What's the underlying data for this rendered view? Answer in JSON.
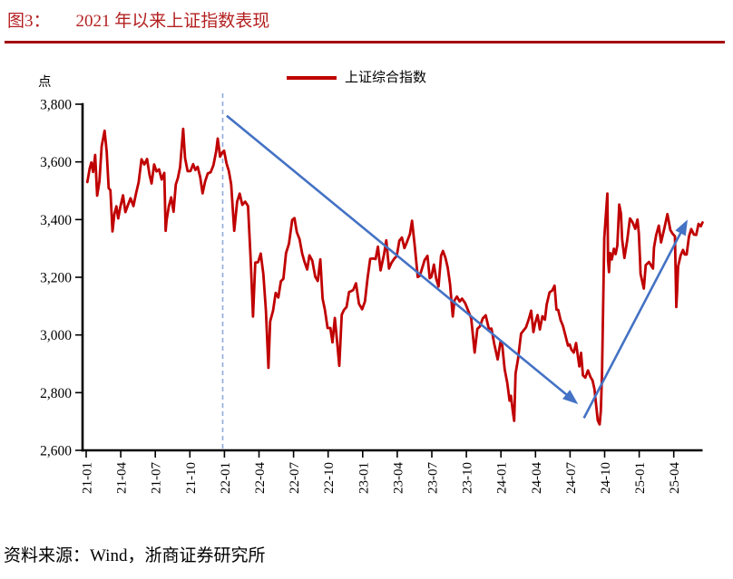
{
  "header": {
    "figure_label": "图3：",
    "title": "2021 年以来上证指数表现"
  },
  "footer": {
    "source": "资料来源：Wind，浙商证券研究所"
  },
  "colors": {
    "title_red": "#B42020",
    "rule_red": "#A40D10",
    "series_red": "#C00000",
    "arrow_blue": "#4472C4",
    "dashed_blue": "#8FAADC",
    "axis_black": "#000000"
  },
  "chart_data": {
    "type": "line",
    "title": "2021 年以来上证指数表现",
    "xlabel": "",
    "ylabel": "点",
    "legend_label": "上证综合指数",
    "legend_position": "top-center",
    "grid": false,
    "ylim": [
      2600,
      3800
    ],
    "yticks": [
      [
        2600,
        "2,600"
      ],
      [
        2800,
        "2,800"
      ],
      [
        3000,
        "3,000"
      ],
      [
        3200,
        "3,200"
      ],
      [
        3400,
        "3,400"
      ],
      [
        3600,
        "3,600"
      ],
      [
        3800,
        "3,800"
      ]
    ],
    "x_unit": "months_since_2021_01",
    "xtick_interval_months": 3,
    "x_range": [
      0,
      53.5
    ],
    "xticks": [
      "21-01",
      "21-04",
      "21-07",
      "21-10",
      "22-01",
      "22-04",
      "22-07",
      "22-10",
      "23-01",
      "23-04",
      "23-07",
      "23-10",
      "24-01",
      "24-04",
      "24-07",
      "24-10",
      "25-01",
      "25-04"
    ],
    "series": [
      {
        "name": "上证综合指数",
        "color": "#C00000",
        "points": [
          [
            0.1,
            3530
          ],
          [
            0.3,
            3576
          ],
          [
            0.45,
            3598
          ],
          [
            0.6,
            3565
          ],
          [
            0.78,
            3624
          ],
          [
            0.95,
            3483
          ],
          [
            1.15,
            3533
          ],
          [
            1.35,
            3655
          ],
          [
            1.6,
            3708
          ],
          [
            1.78,
            3636
          ],
          [
            1.95,
            3509
          ],
          [
            2.1,
            3502
          ],
          [
            2.28,
            3359
          ],
          [
            2.45,
            3419
          ],
          [
            2.62,
            3446
          ],
          [
            2.78,
            3404
          ],
          [
            2.95,
            3442
          ],
          [
            3.2,
            3484
          ],
          [
            3.4,
            3426
          ],
          [
            3.62,
            3450
          ],
          [
            3.85,
            3474
          ],
          [
            4.1,
            3447
          ],
          [
            4.32,
            3490
          ],
          [
            4.55,
            3529
          ],
          [
            4.8,
            3609
          ],
          [
            5.05,
            3591
          ],
          [
            5.28,
            3610
          ],
          [
            5.5,
            3556
          ],
          [
            5.68,
            3525
          ],
          [
            5.9,
            3591
          ],
          [
            6.1,
            3567
          ],
          [
            6.32,
            3574
          ],
          [
            6.55,
            3539
          ],
          [
            6.78,
            3562
          ],
          [
            6.9,
            3361
          ],
          [
            6.98,
            3397
          ],
          [
            7.18,
            3447
          ],
          [
            7.38,
            3477
          ],
          [
            7.58,
            3427
          ],
          [
            7.78,
            3522
          ],
          [
            7.95,
            3543
          ],
          [
            8.15,
            3581
          ],
          [
            8.42,
            3715
          ],
          [
            8.58,
            3613
          ],
          [
            8.8,
            3568
          ],
          [
            9.05,
            3568
          ],
          [
            9.28,
            3592
          ],
          [
            9.48,
            3572
          ],
          [
            9.68,
            3583
          ],
          [
            9.9,
            3547
          ],
          [
            10.1,
            3491
          ],
          [
            10.32,
            3532
          ],
          [
            10.55,
            3560
          ],
          [
            10.8,
            3564
          ],
          [
            11.05,
            3589
          ],
          [
            11.28,
            3637
          ],
          [
            11.42,
            3681
          ],
          [
            11.62,
            3618
          ],
          [
            11.8,
            3632
          ],
          [
            11.97,
            3639
          ],
          [
            12.18,
            3595
          ],
          [
            12.38,
            3569
          ],
          [
            12.58,
            3523
          ],
          [
            12.85,
            3361
          ],
          [
            13.1,
            3462
          ],
          [
            13.32,
            3490
          ],
          [
            13.55,
            3451
          ],
          [
            13.8,
            3462
          ],
          [
            14.05,
            3447
          ],
          [
            14.28,
            3256
          ],
          [
            14.48,
            3064
          ],
          [
            14.68,
            3251
          ],
          [
            14.92,
            3252
          ],
          [
            15.15,
            3282
          ],
          [
            15.38,
            3211
          ],
          [
            15.6,
            3086
          ],
          [
            15.82,
            2886
          ],
          [
            15.97,
            3047
          ],
          [
            16.22,
            3084
          ],
          [
            16.45,
            3146
          ],
          [
            16.68,
            3130
          ],
          [
            16.9,
            3186
          ],
          [
            17.12,
            3195
          ],
          [
            17.35,
            3284
          ],
          [
            17.6,
            3316
          ],
          [
            17.88,
            3399
          ],
          [
            18.08,
            3405
          ],
          [
            18.28,
            3356
          ],
          [
            18.52,
            3332
          ],
          [
            18.75,
            3282
          ],
          [
            18.95,
            3253
          ],
          [
            19.18,
            3227
          ],
          [
            19.38,
            3276
          ],
          [
            19.62,
            3258
          ],
          [
            19.88,
            3202
          ],
          [
            20.1,
            3187
          ],
          [
            20.32,
            3262
          ],
          [
            20.52,
            3126
          ],
          [
            20.72,
            3088
          ],
          [
            20.95,
            3024
          ],
          [
            21.2,
            3024
          ],
          [
            21.38,
            2974
          ],
          [
            21.58,
            3059
          ],
          [
            21.78,
            2977
          ],
          [
            21.97,
            2893
          ],
          [
            22.18,
            3070
          ],
          [
            22.38,
            3087
          ],
          [
            22.6,
            3097
          ],
          [
            22.82,
            3149
          ],
          [
            22.97,
            3151
          ],
          [
            23.18,
            3156
          ],
          [
            23.42,
            3179
          ],
          [
            23.68,
            3108
          ],
          [
            23.95,
            3089
          ],
          [
            24.2,
            3116
          ],
          [
            24.42,
            3195
          ],
          [
            24.65,
            3264
          ],
          [
            24.9,
            3265
          ],
          [
            25.12,
            3263
          ],
          [
            25.32,
            3306
          ],
          [
            25.55,
            3224
          ],
          [
            25.85,
            3279
          ],
          [
            26.05,
            3328
          ],
          [
            26.28,
            3230
          ],
          [
            26.5,
            3250
          ],
          [
            26.75,
            3265
          ],
          [
            26.95,
            3273
          ],
          [
            27.18,
            3327
          ],
          [
            27.4,
            3338
          ],
          [
            27.62,
            3301
          ],
          [
            27.85,
            3323
          ],
          [
            28.1,
            3350
          ],
          [
            28.28,
            3396
          ],
          [
            28.52,
            3308
          ],
          [
            28.78,
            3201
          ],
          [
            28.95,
            3205
          ],
          [
            29.15,
            3230
          ],
          [
            29.38,
            3260
          ],
          [
            29.62,
            3274
          ],
          [
            29.82,
            3197
          ],
          [
            29.97,
            3202
          ],
          [
            30.18,
            3244
          ],
          [
            30.38,
            3196
          ],
          [
            30.58,
            3168
          ],
          [
            30.8,
            3275
          ],
          [
            30.97,
            3291
          ],
          [
            31.18,
            3268
          ],
          [
            31.38,
            3234
          ],
          [
            31.58,
            3176
          ],
          [
            31.82,
            3064
          ],
          [
            31.97,
            3120
          ],
          [
            32.18,
            3133
          ],
          [
            32.42,
            3116
          ],
          [
            32.62,
            3126
          ],
          [
            32.9,
            3110
          ],
          [
            33.15,
            3085
          ],
          [
            33.42,
            3058
          ],
          [
            33.72,
            2939
          ],
          [
            33.95,
            3021
          ],
          [
            34.18,
            3030
          ],
          [
            34.42,
            3057
          ],
          [
            34.68,
            3068
          ],
          [
            34.95,
            3021
          ],
          [
            35.18,
            3022
          ],
          [
            35.42,
            2969
          ],
          [
            35.72,
            2915
          ],
          [
            35.95,
            2975
          ],
          [
            36.12,
            2963
          ],
          [
            36.32,
            2881
          ],
          [
            36.55,
            2833
          ],
          [
            36.75,
            2772
          ],
          [
            36.87,
            2789
          ],
          [
            37.05,
            2730
          ],
          [
            37.15,
            2702
          ],
          [
            37.27,
            2866
          ],
          [
            37.48,
            2916
          ],
          [
            37.75,
            3005
          ],
          [
            37.95,
            3015
          ],
          [
            38.18,
            3027
          ],
          [
            38.42,
            3055
          ],
          [
            38.62,
            3084
          ],
          [
            38.82,
            3010
          ],
          [
            38.97,
            3041
          ],
          [
            39.18,
            3069
          ],
          [
            39.38,
            3019
          ],
          [
            39.6,
            3065
          ],
          [
            39.82,
            3053
          ],
          [
            39.97,
            3105
          ],
          [
            40.22,
            3148
          ],
          [
            40.45,
            3154
          ],
          [
            40.65,
            3171
          ],
          [
            40.82,
            3088
          ],
          [
            40.97,
            3087
          ],
          [
            41.18,
            3051
          ],
          [
            41.38,
            3032
          ],
          [
            41.6,
            2998
          ],
          [
            41.82,
            2963
          ],
          [
            41.97,
            2967
          ],
          [
            42.12,
            2949
          ],
          [
            42.32,
            2939
          ],
          [
            42.52,
            2972
          ],
          [
            42.8,
            2891
          ],
          [
            42.95,
            2938
          ],
          [
            43.12,
            2860
          ],
          [
            43.32,
            2852
          ],
          [
            43.55,
            2877
          ],
          [
            43.77,
            2854
          ],
          [
            43.95,
            2842
          ],
          [
            44.12,
            2812
          ],
          [
            44.4,
            2704
          ],
          [
            44.57,
            2690
          ],
          [
            44.67,
            2736
          ],
          [
            44.77,
            2863
          ],
          [
            44.87,
            3088
          ],
          [
            44.97,
            3336
          ],
          [
            45.24,
            3490
          ],
          [
            45.3,
            3258
          ],
          [
            45.38,
            3218
          ],
          [
            45.47,
            3284
          ],
          [
            45.62,
            3262
          ],
          [
            45.8,
            3299
          ],
          [
            45.95,
            3280
          ],
          [
            46.1,
            3310
          ],
          [
            46.27,
            3452
          ],
          [
            46.42,
            3421
          ],
          [
            46.52,
            3331
          ],
          [
            46.72,
            3267
          ],
          [
            46.95,
            3326
          ],
          [
            47.2,
            3404
          ],
          [
            47.42,
            3391
          ],
          [
            47.65,
            3368
          ],
          [
            47.85,
            3400
          ],
          [
            47.97,
            3352
          ],
          [
            48.07,
            3263
          ],
          [
            48.12,
            3212
          ],
          [
            48.4,
            3161
          ],
          [
            48.57,
            3242
          ],
          [
            48.85,
            3253
          ],
          [
            49.2,
            3230
          ],
          [
            49.28,
            3303
          ],
          [
            49.47,
            3346
          ],
          [
            49.7,
            3379
          ],
          [
            49.9,
            3321
          ],
          [
            50.2,
            3372
          ],
          [
            50.45,
            3419
          ],
          [
            50.7,
            3364
          ],
          [
            50.9,
            3351
          ],
          [
            51.1,
            3342
          ],
          [
            51.22,
            3097
          ],
          [
            51.28,
            3145
          ],
          [
            51.38,
            3238
          ],
          [
            51.6,
            3276
          ],
          [
            51.8,
            3295
          ],
          [
            51.95,
            3279
          ],
          [
            52.12,
            3279
          ],
          [
            52.32,
            3342
          ],
          [
            52.52,
            3367
          ],
          [
            52.75,
            3348
          ],
          [
            52.95,
            3347
          ],
          [
            53.15,
            3385
          ],
          [
            53.35,
            3377
          ],
          [
            53.5,
            3390
          ]
        ]
      }
    ],
    "annotations": {
      "dashed_vline": {
        "t": 11.85,
        "color": "#8FAADC",
        "style": "dashed"
      },
      "trend_arrows": [
        {
          "from_t": 12.2,
          "from_v": 3760,
          "to_t": 42.7,
          "to_v": 2760,
          "color": "#4472C4",
          "direction": "down"
        },
        {
          "from_t": 43.2,
          "from_v": 2712,
          "to_t": 52.2,
          "to_v": 3400,
          "color": "#4472C4",
          "direction": "up"
        }
      ]
    }
  }
}
